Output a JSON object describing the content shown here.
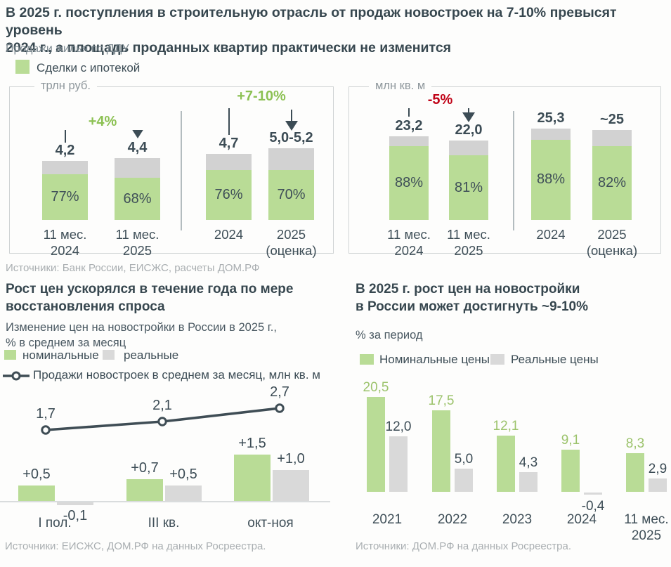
{
  "page": {
    "title": "В 2025 г. поступления в строительную отрасль от продаж новостроек на 7-10% превысят уровень\n2024 г., а площадь проданных квартир практически не изменится",
    "subtitle": "Продажи жилья по ДДУ",
    "mortgage_legend": "Сделки с ипотекой"
  },
  "colors": {
    "bar_green": "#b9dc96",
    "bar_gray": "#d2d2d2",
    "dark_slate": "#3c4c55",
    "accent_green": "#8cc153",
    "accent_red": "#c00418",
    "label_green": "#9cc36c",
    "muted_gray": "#a9aeb1"
  },
  "sources": {
    "top": "Источники: Банк России, ЕИСЖС, расчеты ДОМ.РФ",
    "bottom_left": "Источники: ЕИСЖС, ДОМ.РФ на данных Росреестра.",
    "bottom_right": "Источники: ДОМ.РФ на данных Росреестра."
  },
  "sections": {
    "bottom_left": {
      "heading": "Рост цен ускорялся в течение года по мере\nвосстановления спроса",
      "subtitle": "Изменение цен на новостройки в России в 2025 г.,\n% в среднем за месяц",
      "legend": [
        {
          "label": "номинальные"
        },
        {
          "label": "реальные"
        }
      ],
      "line_legend": "Продажи новостроек в среднем за месяц, млн кв. м"
    },
    "bottom_right": {
      "heading": "В 2025 г. рост цен на новостройки\nв России может достигнуть ~9-10%",
      "unit": "%  за период",
      "legend": [
        {
          "label": "Номинальные цены"
        },
        {
          "label": "Реальные цены"
        }
      ]
    }
  },
  "chart_data": [
    {
      "id": "ddu_sales_rub",
      "type": "stacked-bar",
      "unit": "трлн руб.",
      "legend": "Сделки с ипотекой",
      "categories": [
        "11 мес.\n2024",
        "11 мес.\n2025",
        "2024",
        "2025\n(оценка)"
      ],
      "totals": [
        4.2,
        4.4,
        4.7,
        5.1
      ],
      "total_labels": [
        "4,2",
        "4,4",
        "4,7",
        "5,0-5,2"
      ],
      "mortgage_share_pct": [
        77,
        68,
        76,
        70
      ],
      "share_labels": [
        "77%",
        "68%",
        "76%",
        "70%"
      ],
      "annotations": [
        {
          "text": "+4%",
          "kind": "bracket",
          "from": 0,
          "to": 1,
          "color": "#8cc153"
        },
        {
          "text": "+7-10%",
          "kind": "split",
          "from": 2,
          "to": 3,
          "color": "#8cc153"
        }
      ]
    },
    {
      "id": "ddu_sales_sqm",
      "type": "stacked-bar",
      "unit": "млн кв. м",
      "legend": "Сделки с ипотекой",
      "categories": [
        "11 мес.\n2024",
        "11 мес.\n2025",
        "2024",
        "2025\n(оценка)"
      ],
      "totals": [
        23.2,
        22.0,
        25.3,
        25
      ],
      "total_labels": [
        "23,2",
        "22,0",
        "25,3",
        "~25"
      ],
      "mortgage_share_pct": [
        88,
        81,
        88,
        82
      ],
      "share_labels": [
        "88%",
        "81%",
        "88%",
        "82%"
      ],
      "annotations": [
        {
          "text": "-5%",
          "kind": "bracket",
          "from": 0,
          "to": 1,
          "color": "#c00418"
        }
      ]
    },
    {
      "id": "price_change_monthly_2025",
      "type": "bar+line",
      "categories": [
        "I пол.",
        "III кв.",
        "окт-ноя"
      ],
      "series": [
        {
          "name": "номинальные",
          "values": [
            0.5,
            0.7,
            1.5
          ],
          "labels": [
            "+0,5",
            "+0,7",
            "+1,5"
          ]
        },
        {
          "name": "реальные",
          "values": [
            -0.1,
            0.5,
            1.0
          ],
          "labels": [
            "-0,1",
            "+0,5",
            "+1,0"
          ]
        }
      ],
      "line": {
        "name": "Продажи новостроек в среднем за месяц, млн кв. м",
        "values": [
          1.7,
          2.1,
          2.7
        ],
        "labels": [
          "1,7",
          "2,1",
          "2,7"
        ]
      }
    },
    {
      "id": "price_growth_annual",
      "type": "bar",
      "unit": "% за период",
      "categories": [
        "2021",
        "2022",
        "2023",
        "2024",
        "11 мес.\n2025"
      ],
      "series": [
        {
          "name": "Номинальные цены",
          "values": [
            20.5,
            17.5,
            12.1,
            9.1,
            8.3
          ],
          "labels": [
            "20,5",
            "17,5",
            "12,1",
            "9,1",
            "8,3"
          ]
        },
        {
          "name": "Реальные цены",
          "values": [
            12.0,
            5.0,
            4.3,
            -0.4,
            2.9
          ],
          "labels": [
            "12,0",
            "5,0",
            "4,3",
            "-0,4",
            "2,9"
          ]
        }
      ]
    }
  ]
}
